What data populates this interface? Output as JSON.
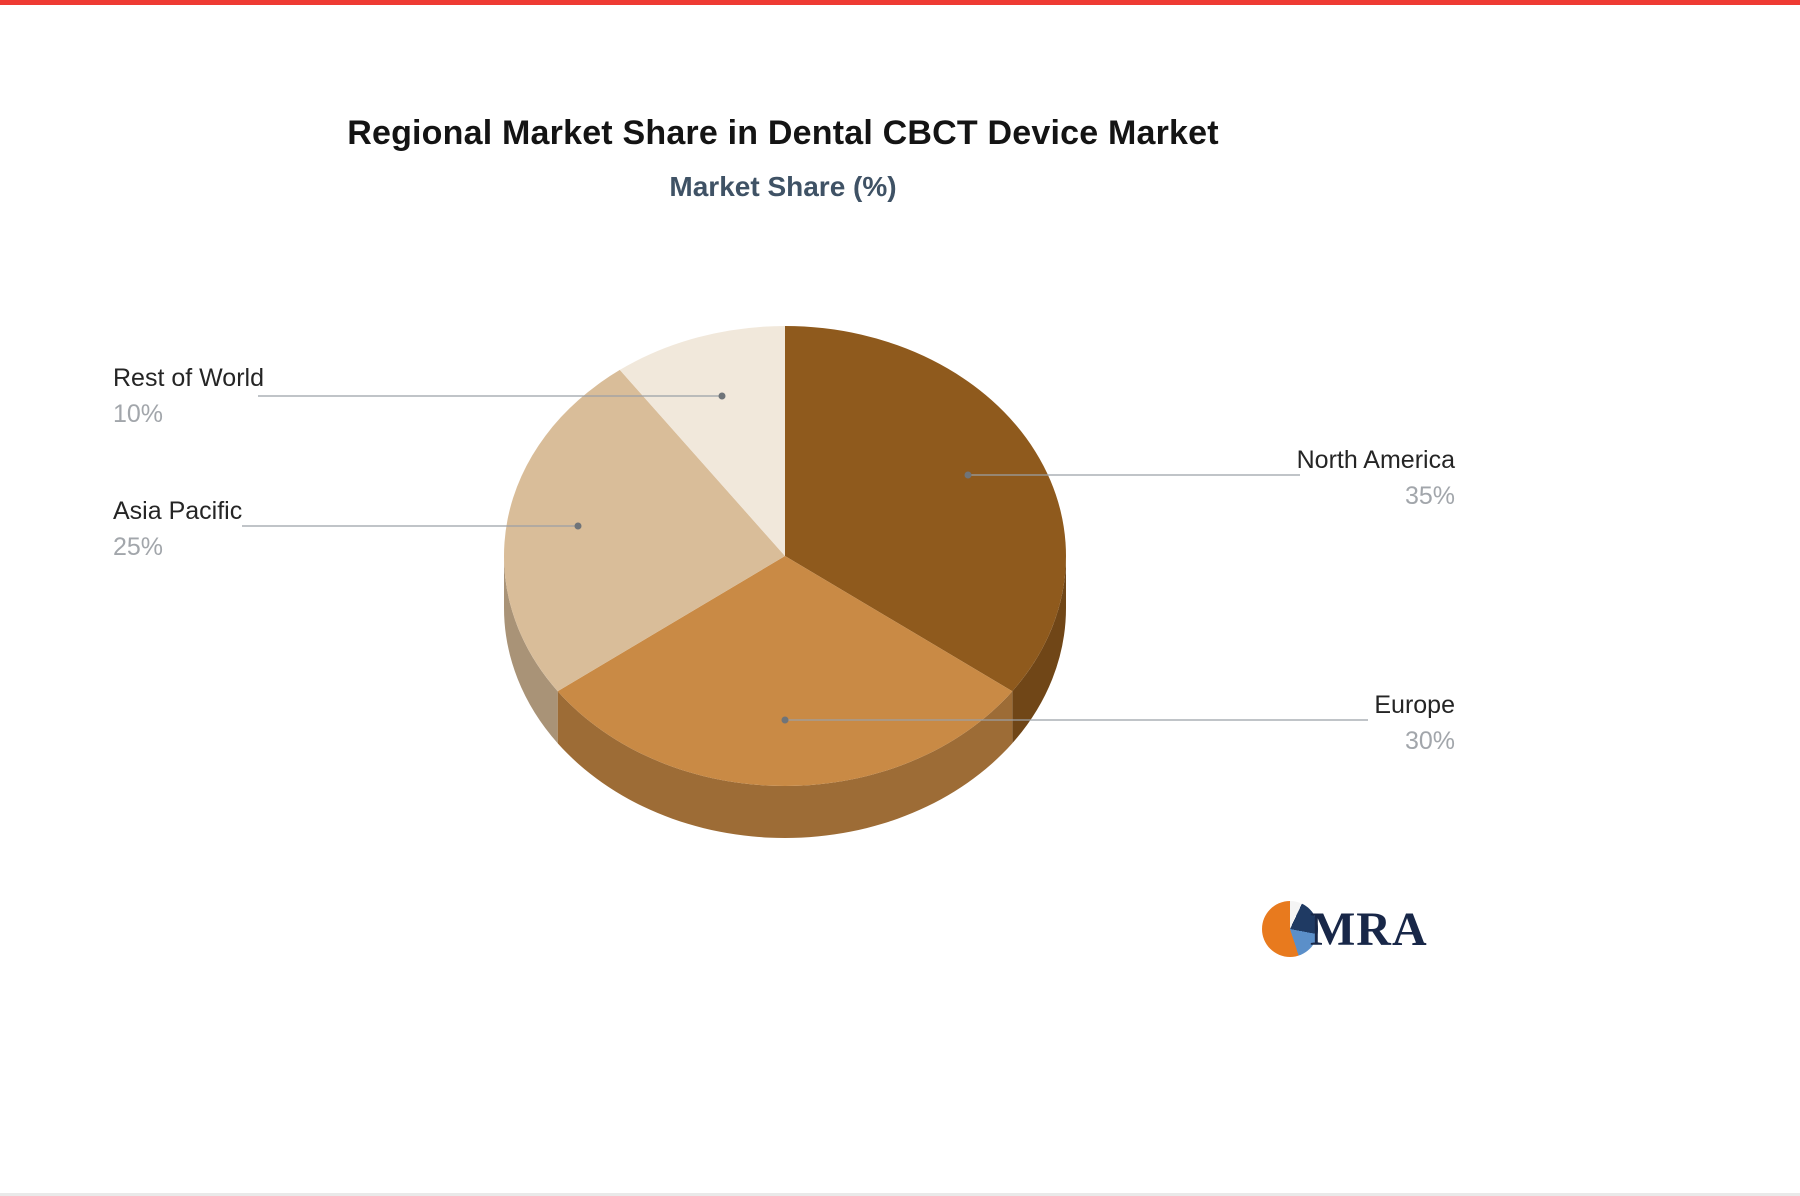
{
  "page": {
    "title": "Regional Market Share in Dental CBCT Device Market",
    "subtitle": "Market Share (%)"
  },
  "chart_data": {
    "type": "pie",
    "effect": "3d",
    "title": "Regional Market Share in Dental CBCT Device Market",
    "subtitle": "Market Share (%)",
    "unit": "%",
    "start_angle_deg": -90,
    "direction": "clockwise",
    "legend_position": "callout-labels",
    "slices": [
      {
        "label": "North America",
        "value": 35,
        "display": "35%",
        "color": "#8f5a1d"
      },
      {
        "label": "Europe",
        "value": 30,
        "display": "30%",
        "color": "#c98a45"
      },
      {
        "label": "Asia Pacific",
        "value": 25,
        "display": "25%",
        "color": "#d9bd99"
      },
      {
        "label": "Rest of World",
        "value": 10,
        "display": "10%",
        "color": "#f1e8db"
      }
    ]
  },
  "branding": {
    "logo_text": "MRA",
    "logo_colors": {
      "orange": "#e87a1e",
      "navy": "#1f3a63",
      "blue": "#5b8fc9"
    }
  },
  "decor": {
    "top_bar_color": "#ee3b33"
  }
}
